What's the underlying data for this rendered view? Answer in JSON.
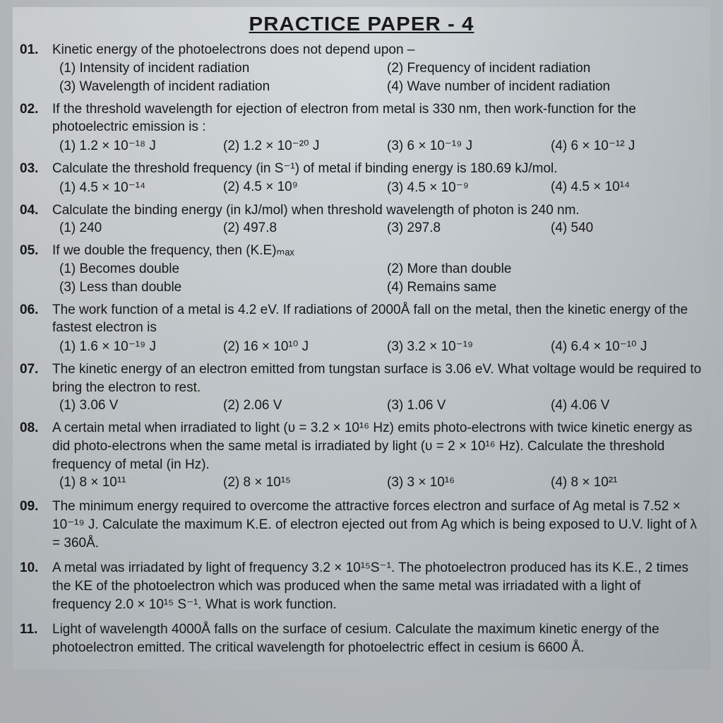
{
  "title": "PRACTICE PAPER - 4",
  "questions": [
    {
      "num": "01.",
      "text": "Kinetic energy of the photoelectrons does not depend upon –",
      "layout": "two",
      "options": [
        "(1)  Intensity of incident radiation",
        "(2)  Frequency of incident radiation",
        "(3)  Wavelength of incident radiation",
        "(4)  Wave number of incident radiation"
      ]
    },
    {
      "num": "02.",
      "text": "If the threshold wavelength for ejection of electron from metal is 330 nm, then work-function for the photoelectric emission is :",
      "layout": "four",
      "options": [
        "(1)  1.2 × 10⁻¹⁸ J",
        "(2)  1.2 × 10⁻²⁰ J",
        "(3)  6 × 10⁻¹⁹ J",
        "(4)  6 × 10⁻¹² J"
      ]
    },
    {
      "num": "03.",
      "text": "Calculate the threshold frequency (in S⁻¹) of metal if binding energy is 180.69 kJ/mol.",
      "layout": "four",
      "options": [
        "(1)  4.5 × 10⁻¹⁴",
        "(2)  4.5 × 10⁹",
        "(3)  4.5 × 10⁻⁹",
        "(4)  4.5 × 10¹⁴"
      ]
    },
    {
      "num": "04.",
      "text": "Calculate the binding energy (in kJ/mol) when threshold wavelength of photon is 240 nm.",
      "layout": "four",
      "options": [
        "(1)  240",
        "(2)  497.8",
        "(3)  297.8",
        "(4)  540"
      ]
    },
    {
      "num": "05.",
      "text": "If we double the frequency, then (K.E)ₘₐₓ",
      "layout": "two",
      "options": [
        "(1)  Becomes double",
        "(2)  More than double",
        "(3)  Less than double",
        "(4)  Remains same"
      ]
    },
    {
      "num": "06.",
      "text": "The work function of a metal is 4.2 eV. If radiations of 2000Å fall on the metal, then the kinetic energy of the fastest electron is",
      "layout": "four",
      "options": [
        "(1)  1.6 × 10⁻¹⁹ J",
        "(2)  16 × 10¹⁰ J",
        "(3)  3.2 × 10⁻¹⁹",
        "(4)  6.4 × 10⁻¹⁰ J"
      ]
    },
    {
      "num": "07.",
      "text": "The kinetic energy of an electron emitted from tungstan surface is 3.06 eV. What voltage would be required to bring the electron to rest.",
      "layout": "four",
      "options": [
        "(1)  3.06 V",
        "(2)  2.06 V",
        "(3)  1.06 V",
        "(4)  4.06 V"
      ]
    },
    {
      "num": "08.",
      "text": "A certain metal when irradiated to light (υ = 3.2 × 10¹⁶ Hz) emits photo-electrons with twice kinetic energy as did photo-electrons when the same metal is irradiated by light (υ = 2 × 10¹⁶ Hz). Calculate the threshold frequency of metal (in Hz).",
      "layout": "four",
      "options": [
        "(1) 8 × 10¹¹",
        "(2) 8 × 10¹⁵",
        "(3) 3 × 10¹⁶",
        "(4) 8 × 10²¹"
      ]
    },
    {
      "num": "09.",
      "text": "The minimum energy required to overcome the attractive forces electron and surface of Ag metal is 7.52 × 10⁻¹⁹ J. Calculate the maximum K.E. of electron ejected out from Ag which is being exposed to U.V. light of λ = 360Å.",
      "layout": "none",
      "options": []
    },
    {
      "num": "10.",
      "text": "A metal was irriadated by light of frequency 3.2 × 10¹⁵S⁻¹. The photoelectron produced has its K.E., 2 times the KE of the photoelectron which was produced when the same metal was irriadated with a light of frequency 2.0 × 10¹⁵ S⁻¹. What is work function.",
      "layout": "none",
      "options": []
    },
    {
      "num": "11.",
      "text": "Light of wavelength 4000Å falls on the surface of cesium. Calculate the maximum kinetic energy of the photoelectron emitted. The critical wavelength for photoelectric effect in cesium is 6600 Å.",
      "layout": "none",
      "options": []
    }
  ]
}
